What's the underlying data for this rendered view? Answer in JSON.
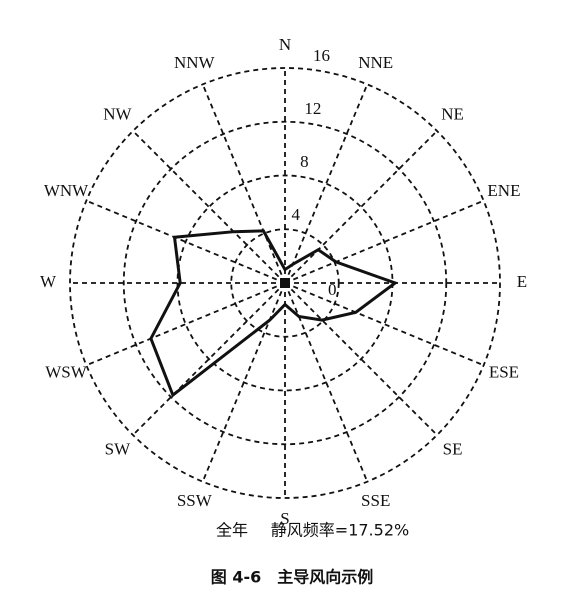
{
  "chart_data": {
    "type": "radar",
    "categories": [
      "N",
      "NNE",
      "NE",
      "ENE",
      "E",
      "ESE",
      "SE",
      "SSE",
      "S",
      "SSW",
      "SW",
      "WSW",
      "W",
      "WNW",
      "NW",
      "NNW"
    ],
    "values": [
      1.0,
      1.5,
      3.5,
      4.1,
      8.2,
      5.7,
      3.9,
      2.7,
      1.6,
      3.0,
      11.8,
      10.8,
      7.8,
      8.9,
      5.4,
      4.2
    ],
    "color": "#111111",
    "rlim": [
      0,
      16
    ],
    "rticks": [
      0,
      4,
      8,
      12,
      16
    ],
    "grid": true,
    "subtitle_left": "全年",
    "subtitle_right": "静风频率=17.52%",
    "caption": "图 4-6　主导风向示例"
  }
}
